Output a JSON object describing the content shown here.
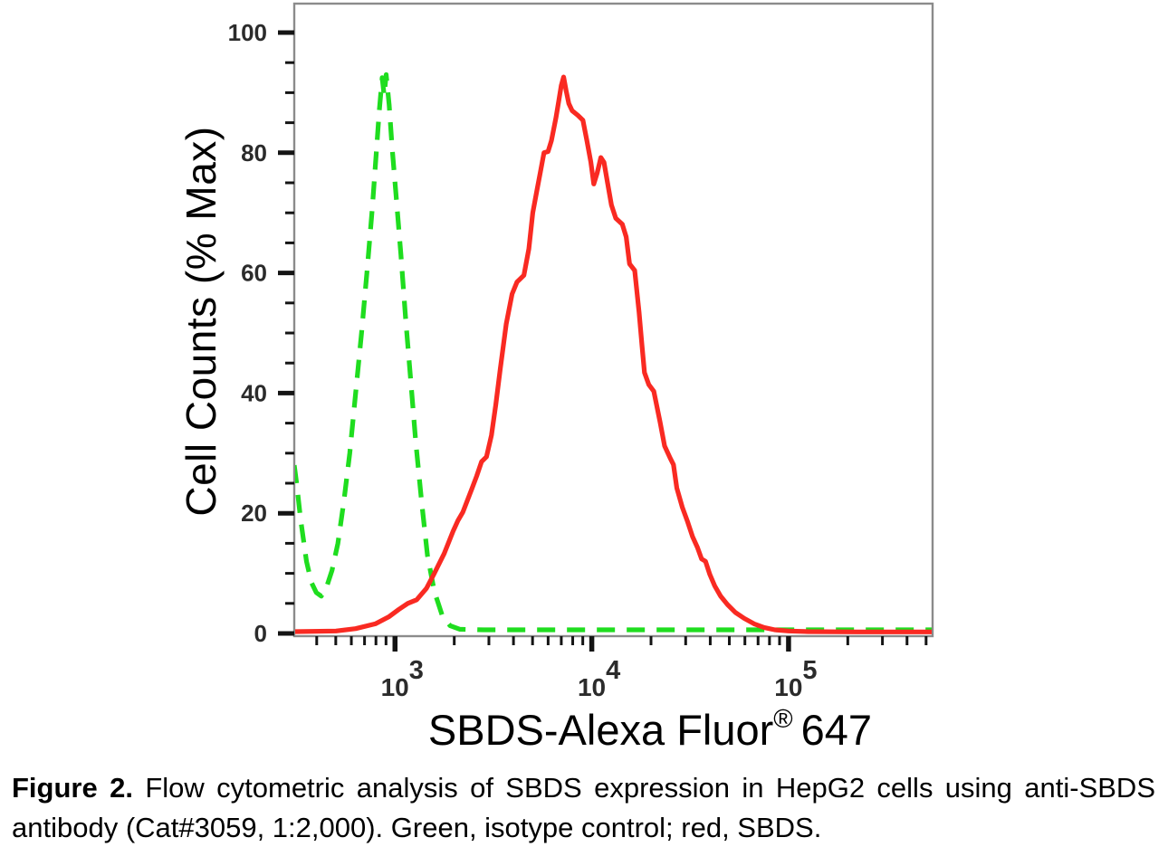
{
  "figure": {
    "caption": {
      "label": "Figure 2.",
      "line1_rest": "Flow cytometric analysis of SBDS expression in HepG2 cells using anti-SBDS",
      "line2": "antibody (Cat#3059, 1:2,000). Green, isotype control; red, SBDS."
    }
  },
  "colors": {
    "isotype_green": "#1fdd1f",
    "sbds_red": "#f92a22",
    "plot_border": "#8b8b8b",
    "tick": "#141414",
    "tick_label": "#2b2b2b"
  },
  "chart_data": {
    "type": "line",
    "subtype": "flow-cytometry-histogram",
    "title": "",
    "xlabel": {
      "main": "SBDS-Alexa Fluor",
      "sup": "®",
      "end": "647"
    },
    "ylabel": "Cell Counts (% Max)",
    "x_scale": "log10",
    "x_range_log10": [
      2.488,
      5.732
    ],
    "x_major_ticks": [
      1000,
      10000,
      100000
    ],
    "x_tick_labels": [
      {
        "base": "10",
        "exp": "3"
      },
      {
        "base": "10",
        "exp": "4"
      },
      {
        "base": "10",
        "exp": "5"
      }
    ],
    "y_range": [
      0,
      100
    ],
    "y_major_ticks": [
      0,
      20,
      40,
      60,
      80,
      100
    ],
    "y_minor_step": 5,
    "grid": false,
    "legend_position": "none",
    "series": [
      {
        "name": "isotype control",
        "color": "#1fdd1f",
        "style": "dashed",
        "points_log10x_pct": [
          [
            2.488,
            28
          ],
          [
            2.5,
            25
          ],
          [
            2.52,
            19
          ],
          [
            2.55,
            12
          ],
          [
            2.575,
            8.5
          ],
          [
            2.6,
            6.8
          ],
          [
            2.625,
            6.2
          ],
          [
            2.65,
            7.5
          ],
          [
            2.68,
            10.5
          ],
          [
            2.71,
            15
          ],
          [
            2.74,
            22
          ],
          [
            2.77,
            30
          ],
          [
            2.8,
            40
          ],
          [
            2.83,
            50
          ],
          [
            2.86,
            61
          ],
          [
            2.885,
            71
          ],
          [
            2.905,
            80
          ],
          [
            2.92,
            87
          ],
          [
            2.935,
            92.5
          ],
          [
            2.945,
            89.5
          ],
          [
            2.955,
            93
          ],
          [
            2.97,
            88
          ],
          [
            2.985,
            81
          ],
          [
            3.005,
            73
          ],
          [
            3.03,
            63
          ],
          [
            3.055,
            52
          ],
          [
            3.08,
            42
          ],
          [
            3.105,
            32
          ],
          [
            3.135,
            22
          ],
          [
            3.165,
            13
          ],
          [
            3.2,
            7
          ],
          [
            3.24,
            3
          ],
          [
            3.28,
            1.3
          ],
          [
            3.33,
            0.7
          ],
          [
            3.45,
            0.6
          ],
          [
            3.8,
            0.6
          ],
          [
            4.2,
            0.6
          ],
          [
            4.6,
            0.6
          ],
          [
            5.0,
            0.6
          ],
          [
            5.4,
            0.6
          ],
          [
            5.732,
            0.6
          ]
        ]
      },
      {
        "name": "SBDS",
        "color": "#f92a22",
        "style": "solid",
        "points_log10x_pct": [
          [
            2.488,
            0.3
          ],
          [
            2.7,
            0.4
          ],
          [
            2.8,
            0.8
          ],
          [
            2.9,
            1.6
          ],
          [
            2.97,
            2.8
          ],
          [
            3.02,
            4
          ],
          [
            3.065,
            5
          ],
          [
            3.11,
            5.6
          ],
          [
            3.16,
            7.5
          ],
          [
            3.2,
            10
          ],
          [
            3.25,
            13.3
          ],
          [
            3.295,
            17
          ],
          [
            3.32,
            18.8
          ],
          [
            3.345,
            20.2
          ],
          [
            3.39,
            24
          ],
          [
            3.415,
            26.2
          ],
          [
            3.44,
            28.6
          ],
          [
            3.465,
            29.4
          ],
          [
            3.49,
            33
          ],
          [
            3.512,
            38
          ],
          [
            3.535,
            44
          ],
          [
            3.565,
            51.5
          ],
          [
            3.595,
            56.5
          ],
          [
            3.62,
            58.5
          ],
          [
            3.655,
            59.6
          ],
          [
            3.68,
            64
          ],
          [
            3.7,
            70
          ],
          [
            3.72,
            73.5
          ],
          [
            3.74,
            77
          ],
          [
            3.757,
            80
          ],
          [
            3.778,
            80.2
          ],
          [
            3.795,
            82
          ],
          [
            3.818,
            85.8
          ],
          [
            3.832,
            88.6
          ],
          [
            3.845,
            91.2
          ],
          [
            3.857,
            92.6
          ],
          [
            3.87,
            90.3
          ],
          [
            3.883,
            88.2
          ],
          [
            3.9,
            87
          ],
          [
            3.93,
            86.2
          ],
          [
            3.955,
            85.4
          ],
          [
            3.975,
            82
          ],
          [
            3.995,
            78.5
          ],
          [
            4.01,
            74.8
          ],
          [
            4.027,
            76.6
          ],
          [
            4.046,
            79.2
          ],
          [
            4.062,
            78.4
          ],
          [
            4.08,
            75
          ],
          [
            4.1,
            71.3
          ],
          [
            4.122,
            69.1
          ],
          [
            4.155,
            68.1
          ],
          [
            4.175,
            66
          ],
          [
            4.192,
            61.5
          ],
          [
            4.218,
            60.4
          ],
          [
            4.24,
            53.5
          ],
          [
            4.255,
            48
          ],
          [
            4.268,
            43.4
          ],
          [
            4.29,
            41.4
          ],
          [
            4.315,
            40.3
          ],
          [
            4.347,
            35.2
          ],
          [
            4.37,
            31.2
          ],
          [
            4.398,
            29.2
          ],
          [
            4.415,
            28.1
          ],
          [
            4.432,
            24.2
          ],
          [
            4.46,
            21
          ],
          [
            4.487,
            18.6
          ],
          [
            4.512,
            16.1
          ],
          [
            4.537,
            14.3
          ],
          [
            4.558,
            12.4
          ],
          [
            4.578,
            12.0
          ],
          [
            4.6,
            9.8
          ],
          [
            4.625,
            7.9
          ],
          [
            4.655,
            6.2
          ],
          [
            4.69,
            4.8
          ],
          [
            4.73,
            3.5
          ],
          [
            4.775,
            2.5
          ],
          [
            4.825,
            1.6
          ],
          [
            4.875,
            1.0
          ],
          [
            4.93,
            0.6
          ],
          [
            5.0,
            0.4
          ],
          [
            5.1,
            0.3
          ],
          [
            5.35,
            0.25
          ],
          [
            5.732,
            0.25
          ]
        ]
      }
    ]
  }
}
